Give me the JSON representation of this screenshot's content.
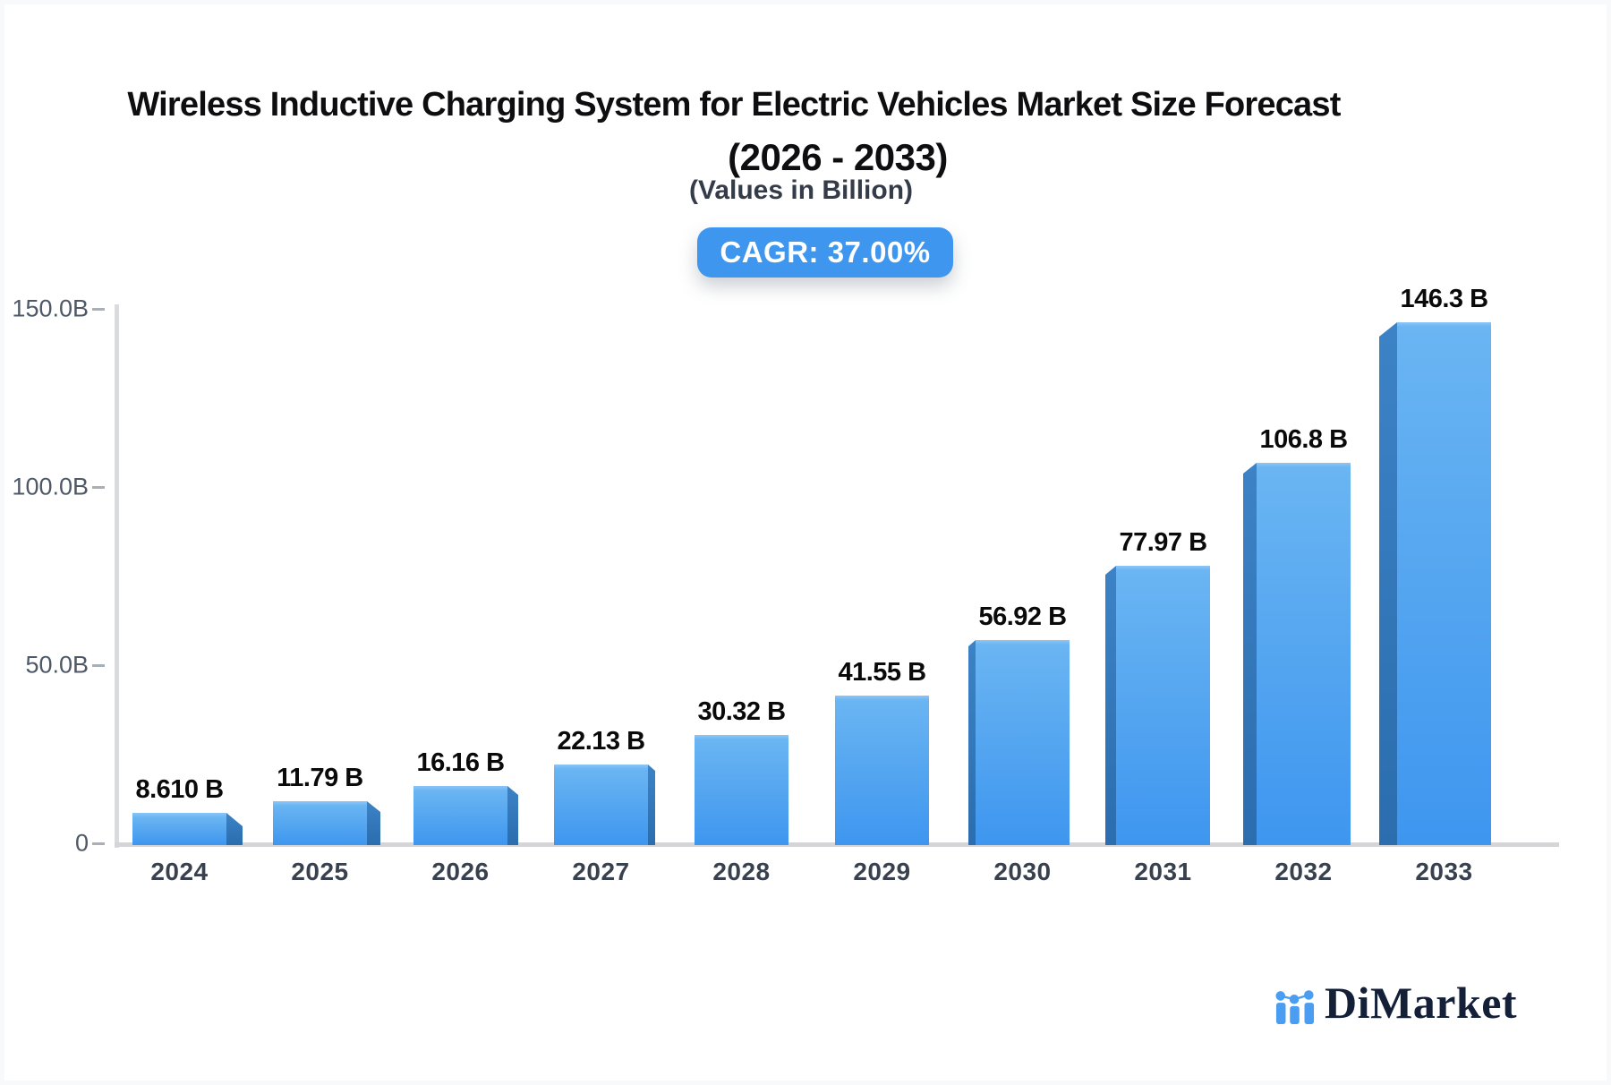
{
  "header": {
    "title_line1": "Wireless Inductive Charging System for Electric Vehicles Market Size Forecast",
    "title_line2": "(2026 - 2033)",
    "subtitle": "(Values in Billion)",
    "cagr_badge": "CAGR: 37.00%"
  },
  "branding": {
    "logo_icon": "bar-chart-icon",
    "logo_text": "DiMarket"
  },
  "colors": {
    "accent_blue": "#3e96ee",
    "bar_face_top": "#6ab5f2",
    "bar_face_bottom": "#3e96ef",
    "bar_side": "#2e74b8",
    "axis_line": "#d6d8dc",
    "tick": "#a9afb7",
    "y_label": "#4e5866",
    "x_label": "#39404e",
    "value_label": "#0a0a0b",
    "title": "#0e0e10",
    "subtitle": "#343b49",
    "logo_icon_blue": "#4a9df0",
    "logo_text_navy": "#132038"
  },
  "chart_data": {
    "type": "bar",
    "title": "Wireless Inductive Charging System for Electric Vehicles Market Size Forecast (2026 - 2033)",
    "subtitle": "(Values in Billion)",
    "cagr_percent": 37.0,
    "categories": [
      "2024",
      "2025",
      "2026",
      "2027",
      "2028",
      "2029",
      "2030",
      "2031",
      "2032",
      "2033"
    ],
    "values": [
      8.61,
      11.79,
      16.16,
      22.13,
      30.32,
      41.55,
      56.92,
      77.97,
      106.8,
      146.3
    ],
    "bar_labels": [
      "8.610 B",
      "11.79 B",
      "16.16 B",
      "22.13 B",
      "30.32 B",
      "41.55 B",
      "56.92 B",
      "77.97 B",
      "106.8 B",
      "146.3 B"
    ],
    "y_ticks": [
      {
        "value": 0,
        "label": "0"
      },
      {
        "value": 50,
        "label": "50.0B"
      },
      {
        "value": 100,
        "label": "100.0B"
      },
      {
        "value": 150,
        "label": "150.0B"
      }
    ],
    "ylim": [
      0,
      150
    ],
    "xlabel": "",
    "ylabel": "",
    "unit": "B",
    "grid": false,
    "legend": false,
    "bar_style": "3d-extruded"
  }
}
